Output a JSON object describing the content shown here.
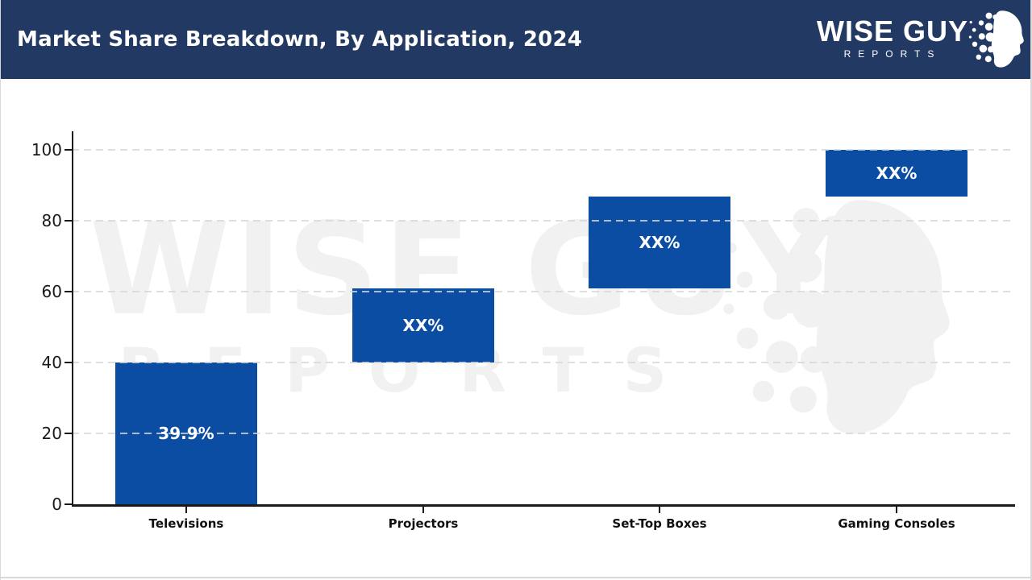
{
  "header": {
    "title": "Market Share Breakdown, By Application, 2024",
    "logo": {
      "line1": "WISE GUY",
      "line2": "REPORTS"
    }
  },
  "watermark": {
    "line1": "WISE GUY",
    "line2": "REPORTS"
  },
  "colors": {
    "header_bg": "#223A63",
    "bar_fill": "#0B4DA2",
    "title_text": "#FFFFFF",
    "axis": "#1A1A1A",
    "gridline": "#D7D7D7",
    "watermark": "#F1F1F2"
  },
  "chart_data": {
    "type": "bar",
    "subtype": "waterfall",
    "title": "Market Share Breakdown, By Application, 2024",
    "categories": [
      "Televisions",
      "Projectors",
      "Set-Top Boxes",
      "Gaming Consoles"
    ],
    "segments": [
      {
        "category": "Televisions",
        "start": 0,
        "end": 39.9,
        "value": 39.9,
        "label": "39.9%"
      },
      {
        "category": "Projectors",
        "start": 39.9,
        "end": 60.9,
        "value": 21.0,
        "label": "XX%"
      },
      {
        "category": "Set-Top Boxes",
        "start": 60.9,
        "end": 86.9,
        "value": 26.0,
        "label": "XX%"
      },
      {
        "category": "Gaming Consoles",
        "start": 86.9,
        "end": 100.1,
        "value": 13.2,
        "label": "XX%"
      }
    ],
    "yticks": [
      0,
      20,
      40,
      60,
      80,
      100
    ],
    "ylim": [
      0,
      105
    ],
    "xlabel": "",
    "ylabel": "",
    "grid": "horizontal-dashed",
    "legend": "none"
  }
}
